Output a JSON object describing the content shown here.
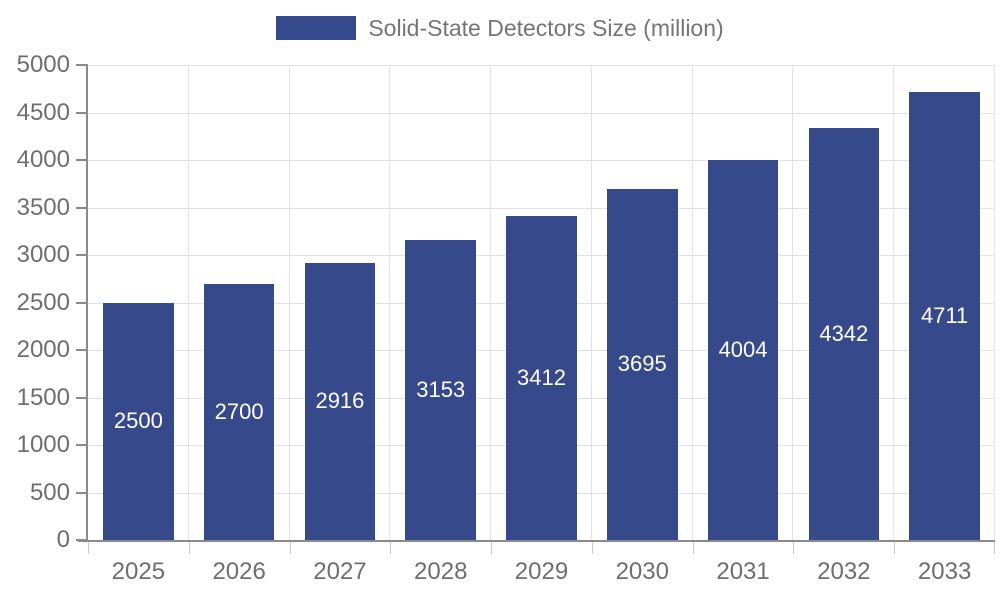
{
  "chart_data": {
    "type": "bar",
    "title": "Solid-State Detectors Size (million)",
    "legend": [
      "Solid-State Detectors Size (million)"
    ],
    "legend_position": "top-center",
    "categories": [
      "2025",
      "2026",
      "2027",
      "2028",
      "2029",
      "2030",
      "2031",
      "2032",
      "2033"
    ],
    "values": [
      2500,
      2700,
      2916,
      3153,
      3412,
      3695,
      4004,
      4342,
      4711
    ],
    "xlabel": "",
    "ylabel": "",
    "ylim": [
      0,
      5000
    ],
    "ytick_step": 500,
    "ytick_labels": [
      "0",
      "500",
      "1000",
      "1500",
      "2000",
      "2500",
      "3000",
      "3500",
      "4000",
      "4500",
      "5000"
    ],
    "grid": true,
    "bar_labels_visible": true,
    "bar_width_fraction": 0.7,
    "colors": {
      "bar": "#36498A",
      "bar_label": "#FFFFFF",
      "axis_text": "#6E6E6E",
      "legend_text": "#757575",
      "gridline": "#E2E2E2",
      "axis_line": "#8A8A8A",
      "tick": "#C9C9C9",
      "background": "#FFFFFF"
    }
  }
}
